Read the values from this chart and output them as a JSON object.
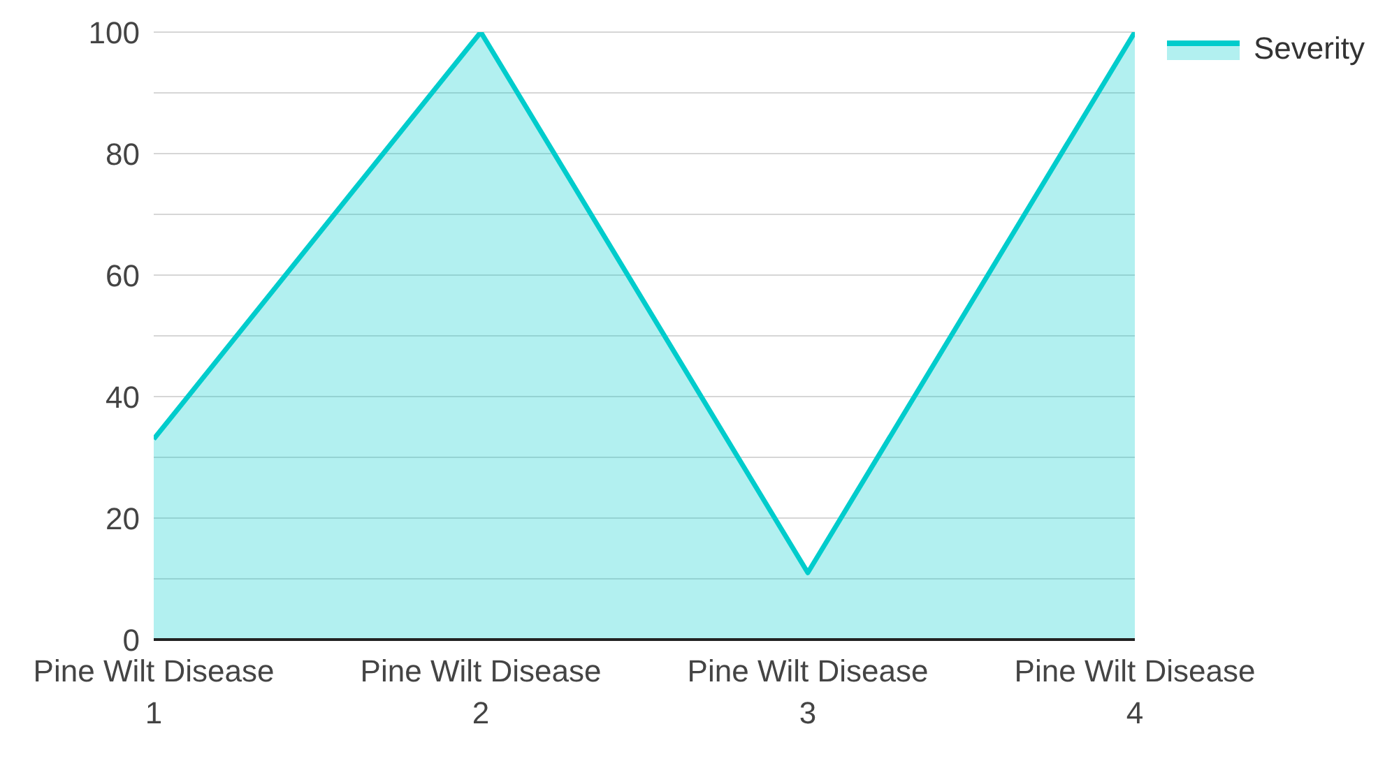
{
  "chart_data": {
    "type": "area",
    "categories": [
      "Pine Wilt Disease 1",
      "Pine Wilt Disease 2",
      "Pine Wilt Disease 3",
      "Pine Wilt Disease 4"
    ],
    "series": [
      {
        "name": "Severity",
        "color": "#00cccc",
        "values": [
          33,
          100,
          11,
          100
        ]
      }
    ],
    "ylim": [
      0,
      100
    ],
    "yticks": [
      0,
      {
        "value": 10,
        "label": null
      },
      20,
      {
        "value": 30,
        "label": null
      },
      40,
      {
        "value": 50,
        "label": null
      },
      60,
      {
        "value": 70,
        "label": null
      },
      80,
      {
        "value": 90,
        "label": null
      },
      100
    ],
    "grid": "y",
    "legend": "top right"
  }
}
